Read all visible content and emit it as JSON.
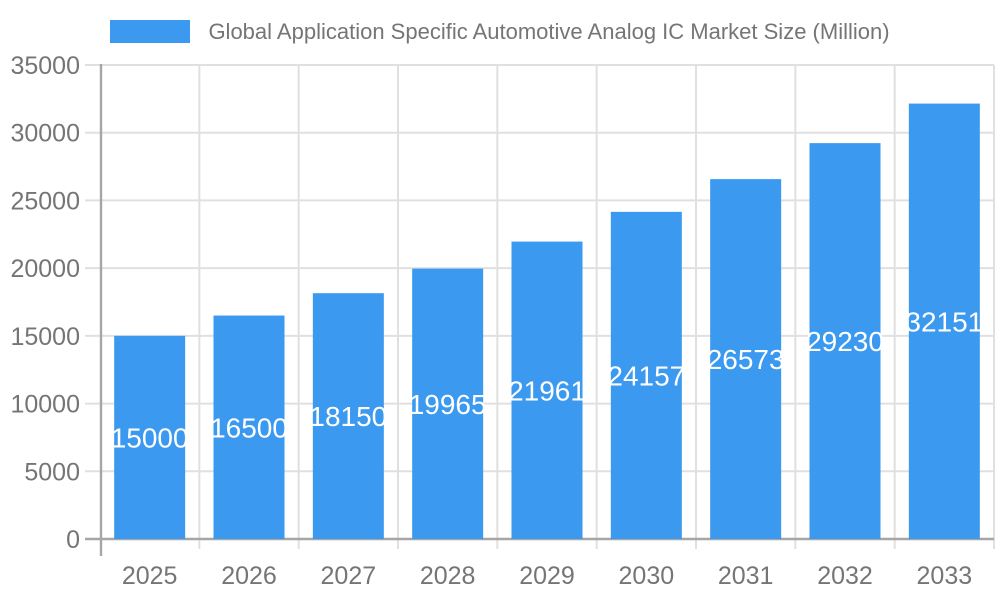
{
  "chart_data": {
    "type": "bar",
    "title": "Global Application Specific Automotive Analog IC Market Size (Million)",
    "categories": [
      "2025",
      "2026",
      "2027",
      "2028",
      "2029",
      "2030",
      "2031",
      "2032",
      "2033"
    ],
    "values": [
      15000,
      16500,
      18150,
      19965,
      21961,
      24157,
      26573,
      29230,
      32151
    ],
    "value_labels": [
      "15000",
      "16500",
      "18150",
      "19965",
      "21961",
      "24157",
      "26573",
      "29230",
      "32151"
    ],
    "xlabel": "",
    "ylabel": "",
    "ylim": [
      0,
      35000
    ],
    "yticks": [
      0,
      5000,
      10000,
      15000,
      20000,
      25000,
      30000,
      35000
    ],
    "grid": true,
    "legend_position": "top",
    "colors": {
      "bar": "#3B99F0",
      "value_label": "#FFFFFF",
      "axis_line": "#A6A6A6",
      "grid_line": "#E0E0E0",
      "tick_label": "#757575",
      "legend_text": "#757575",
      "background": "#FFFFFF"
    }
  }
}
